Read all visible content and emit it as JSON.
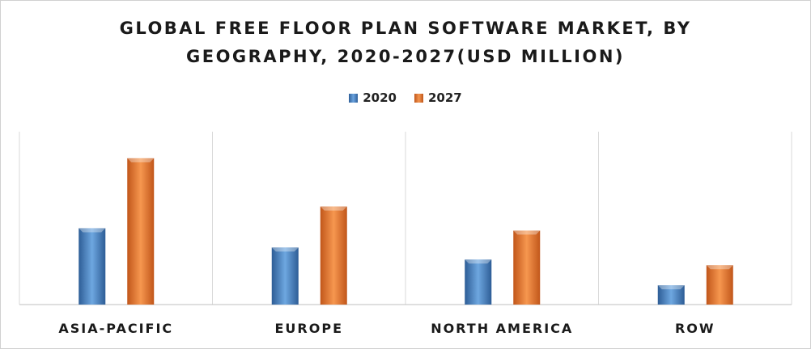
{
  "chart_data": {
    "type": "bar",
    "title_line1": "GLOBAL FREE FLOOR PLAN SOFTWARE MARKET, BY",
    "title_line2": "GEOGRAPHY, 2020-2027(USD MILLION)",
    "categories": [
      "ASIA-PACIFIC",
      "EUROPE",
      "NORTH AMERICA",
      "ROW"
    ],
    "series": [
      {
        "name": "2020",
        "color": "#4a86c8",
        "values": [
          95,
          71,
          56,
          24
        ]
      },
      {
        "name": "2027",
        "color": "#ed7d31",
        "values": [
          182,
          122,
          92,
          49
        ]
      }
    ],
    "ylim": [
      0,
      215
    ],
    "legend_position": "top-center",
    "grid": false
  }
}
